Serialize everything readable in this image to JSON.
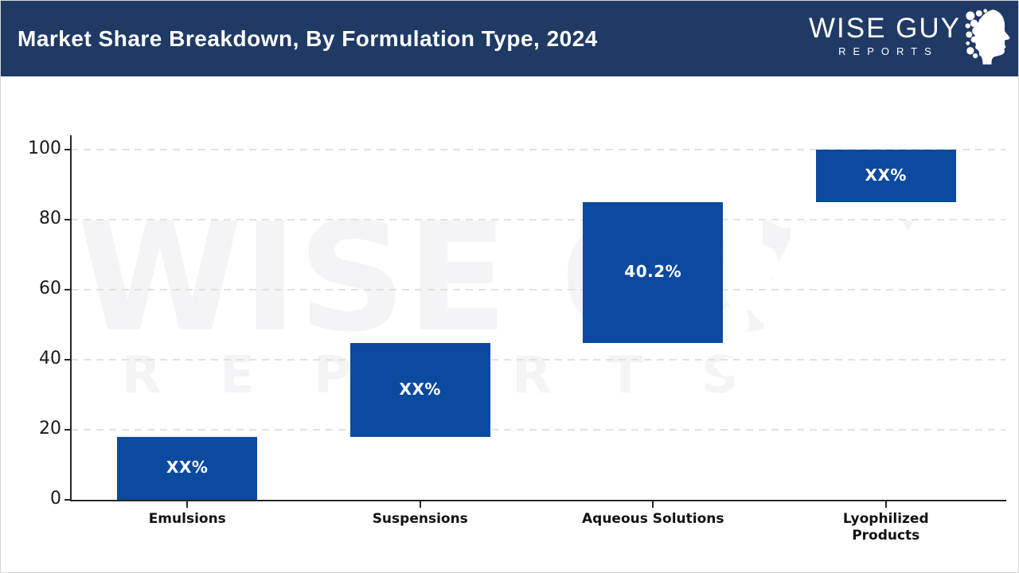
{
  "header": {
    "title": "Market Share Breakdown, By Formulation Type, 2024",
    "bg_color": "#1f3a64",
    "logo": {
      "line1": "WISE GUY",
      "line2": "REPORTS"
    }
  },
  "watermark": {
    "line1": "WISE GUY",
    "line2": "REPORTS"
  },
  "chart_data": {
    "type": "bar",
    "variant": "waterfall",
    "title": "Market Share Breakdown, By Formulation Type, 2024",
    "categories": [
      "Emulsions",
      "Suspensions",
      "Aqueous Solutions",
      "Lyophilized\nProducts"
    ],
    "series": [
      {
        "name": "Market Share (%)",
        "segments": [
          {
            "category": "Emulsions",
            "start": 0,
            "end": 18,
            "value_label": "XX%"
          },
          {
            "category": "Suspensions",
            "start": 18,
            "end": 44.8,
            "value_label": "XX%"
          },
          {
            "category": "Aqueous Solutions",
            "start": 44.8,
            "end": 85,
            "value_label": "40.2%"
          },
          {
            "category": "Lyophilized Products",
            "start": 85,
            "end": 100,
            "value_label": "XX%"
          }
        ]
      }
    ],
    "ylim": [
      0,
      100
    ],
    "yticks": [
      0,
      20,
      40,
      60,
      80,
      100
    ],
    "grid": {
      "horizontal": true,
      "style": "dashed"
    },
    "legend": "none",
    "bar_color": "#0b4a9f",
    "bar_label_color": "#ffffff",
    "axis_color": "#262626"
  }
}
